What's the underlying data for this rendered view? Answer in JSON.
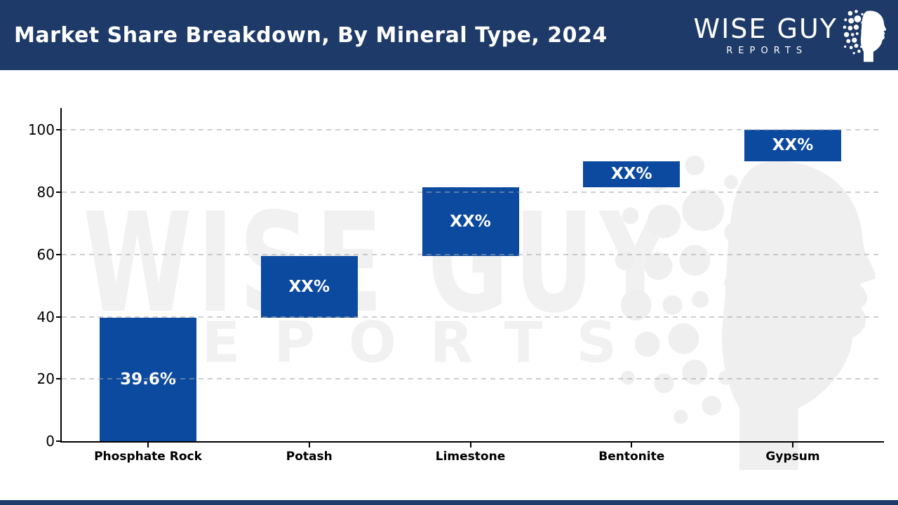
{
  "header": {
    "title": "Market Share Breakdown, By Mineral Type, 2024",
    "logo": {
      "line1": "WISE GUY",
      "line2": "REPORTS"
    }
  },
  "watermark": {
    "line1": "WISE GUY",
    "line2": "REPORTS"
  },
  "colors": {
    "header_bg": "#1e3a68",
    "footer_bg": "#1e3a68",
    "bar": "#0b4a9f",
    "bar_label_text": "#ffffff",
    "gridline": "#d9d9d9",
    "axis": "#000000",
    "watermark": "#f1f1f1"
  },
  "chart_data": {
    "type": "bar",
    "subtype": "waterfall",
    "title": "Market Share Breakdown, By Mineral Type, 2024",
    "xlabel": "",
    "ylabel": "",
    "ylim": [
      0,
      107.5
    ],
    "yticks": [
      0,
      20,
      40,
      60,
      80,
      100
    ],
    "grid": "horizontal-dashed",
    "legend": "none",
    "categories": [
      "Phosphate Rock",
      "Potash",
      "Limestone",
      "Bentonite",
      "Gypsum"
    ],
    "segments": [
      {
        "category": "Phosphate Rock",
        "start": 0,
        "end": 39.6,
        "label": "39.6%"
      },
      {
        "category": "Potash",
        "start": 39.6,
        "end": 59.5,
        "label": "XX%"
      },
      {
        "category": "Limestone",
        "start": 59.5,
        "end": 81.5,
        "label": "XX%"
      },
      {
        "category": "Bentonite",
        "start": 81.5,
        "end": 90.0,
        "label": "XX%"
      },
      {
        "category": "Gypsum",
        "start": 90.0,
        "end": 100.0,
        "label": "XX%"
      }
    ]
  }
}
